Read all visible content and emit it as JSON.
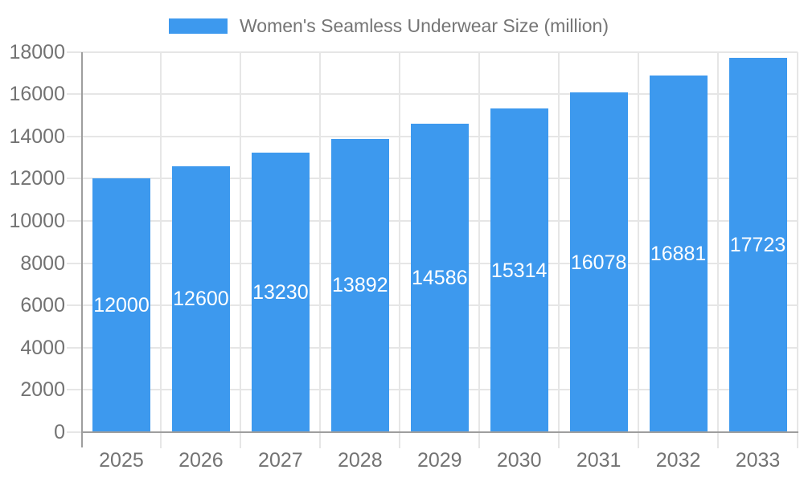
{
  "chart_data": {
    "type": "bar",
    "title": "Women's Seamless Underwear Size (million)",
    "categories": [
      "2025",
      "2026",
      "2027",
      "2028",
      "2029",
      "2030",
      "2031",
      "2032",
      "2033"
    ],
    "values": [
      12000,
      12600,
      13230,
      13892,
      14586,
      15314,
      16078,
      16881,
      17723
    ],
    "xlabel": "",
    "ylabel": "",
    "ylim": [
      0,
      18000
    ],
    "yticks": [
      0,
      2000,
      4000,
      6000,
      8000,
      10000,
      12000,
      14000,
      16000,
      18000
    ],
    "grid": true,
    "legend_position": "top",
    "value_labels": "inside-center",
    "colors": {
      "bar": "#3d99ee",
      "axis_line": "#9e9e9e",
      "gridline": "#e6e6e6",
      "text": "#737373",
      "legend_text": "#757575",
      "bar_label": "#ffffff",
      "background": "#ffffff"
    }
  }
}
